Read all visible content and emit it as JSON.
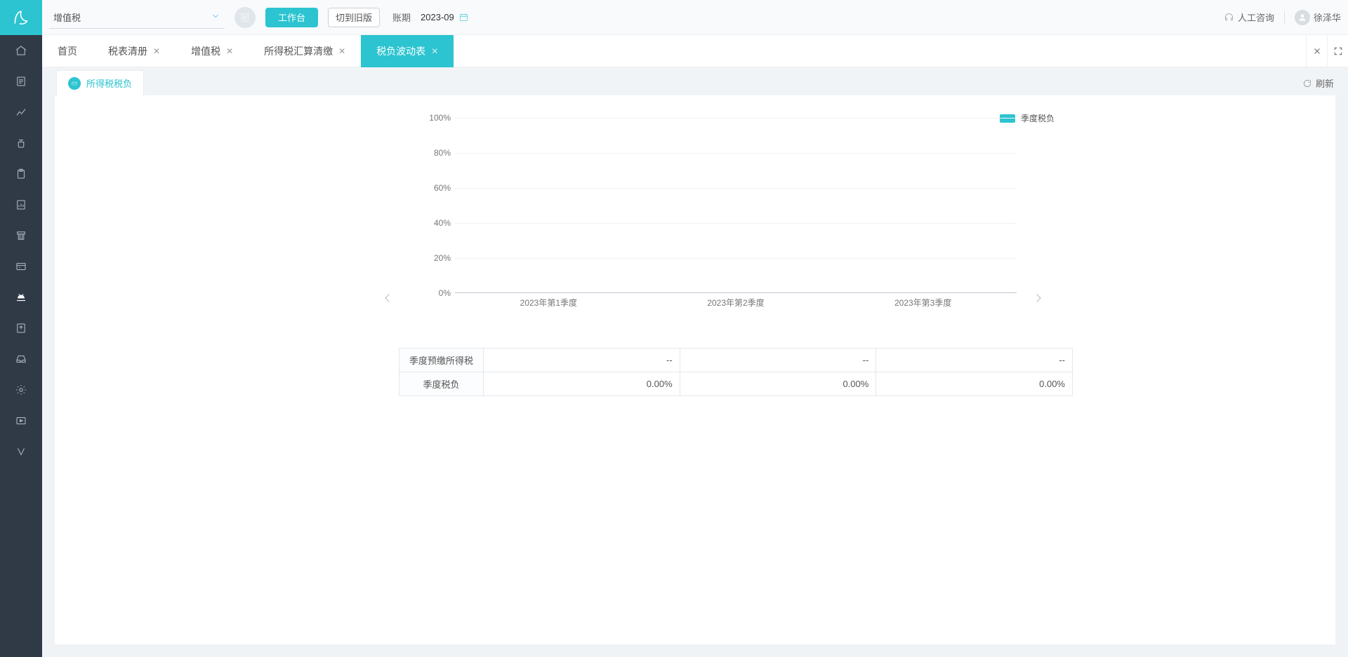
{
  "accent": "#2bc4d0",
  "topbar": {
    "dropdown_value": "增值税",
    "workbench_label": "工作台",
    "switch_old_label": "切到旧版",
    "period_label": "账期",
    "period_value": "2023-09",
    "consult_label": "人工咨询",
    "user_name": "徐泽华"
  },
  "tabs": [
    {
      "label": "首页",
      "closable": false,
      "active": false
    },
    {
      "label": "税表清册",
      "closable": true,
      "active": false
    },
    {
      "label": "增值税",
      "closable": true,
      "active": false
    },
    {
      "label": "所得税汇算清缴",
      "closable": true,
      "active": false
    },
    {
      "label": "税负波动表",
      "closable": true,
      "active": true
    }
  ],
  "subtab": {
    "label": "所得税税负"
  },
  "refresh_label": "刷新",
  "chart": {
    "type": "line",
    "legend_label": "季度税负",
    "series_color": "#2bc4d0",
    "background_color": "#ffffff",
    "grid_color": "#eef1f4",
    "axis_color": "#bfc7cf",
    "label_color": "#777777",
    "label_fontsize": 12,
    "ylim": [
      0,
      100
    ],
    "y_ticks": [
      "0%",
      "20%",
      "40%",
      "60%",
      "80%",
      "100%"
    ],
    "x_ticks": [
      "2023年第1季度",
      "2023年第2季度",
      "2023年第3季度"
    ],
    "values": [
      0,
      0,
      0
    ]
  },
  "table": {
    "rows": [
      {
        "head": "季度预缴所得税",
        "cells": [
          "--",
          "--",
          "--"
        ]
      },
      {
        "head": "季度税负",
        "cells": [
          "0.00%",
          "0.00%",
          "0.00%"
        ]
      }
    ]
  }
}
